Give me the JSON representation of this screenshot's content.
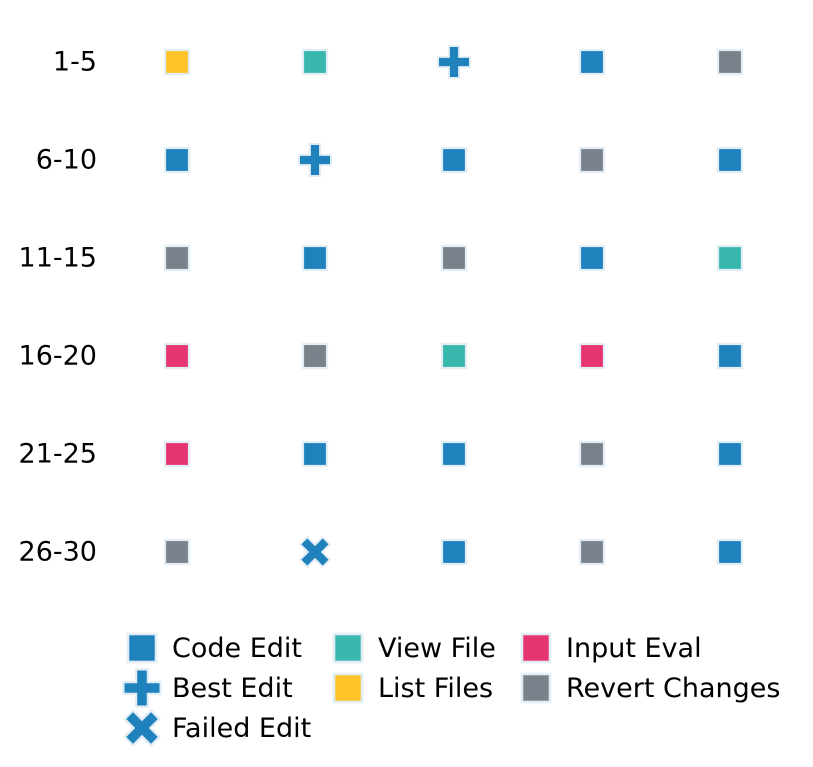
{
  "chart_data": {
    "type": "scatter",
    "title": "",
    "xlabel": "",
    "ylabel": "",
    "grid": false,
    "background": "#ffffff",
    "marker_edge_color": "#e3edf6",
    "text_color": "#000000",
    "legend_position": "bottom",
    "y_tick_labels": [
      "1-5",
      "6-10",
      "11-15",
      "16-20",
      "21-25",
      "26-30"
    ],
    "actions": [
      {
        "label": "Code Edit",
        "marker": "square",
        "color": "#1f82bd"
      },
      {
        "label": "Best Edit",
        "marker": "plus",
        "color": "#1f82bd"
      },
      {
        "label": "Failed Edit",
        "marker": "x",
        "color": "#1f82bd"
      },
      {
        "label": "View File",
        "marker": "square",
        "color": "#39b7ad"
      },
      {
        "label": "List Files",
        "marker": "square",
        "color": "#fdc328"
      },
      {
        "label": "Input Eval",
        "marker": "square",
        "color": "#e73571"
      },
      {
        "label": "Revert Changes",
        "marker": "square",
        "color": "#7a818a"
      }
    ],
    "rows": [
      {
        "label": "1-5",
        "actions": [
          "List Files",
          "View File",
          "Best Edit",
          "Code Edit",
          "Revert Changes"
        ]
      },
      {
        "label": "6-10",
        "actions": [
          "Code Edit",
          "Best Edit",
          "Code Edit",
          "Revert Changes",
          "Code Edit"
        ]
      },
      {
        "label": "11-15",
        "actions": [
          "Revert Changes",
          "Code Edit",
          "Revert Changes",
          "Code Edit",
          "View File"
        ]
      },
      {
        "label": "16-20",
        "actions": [
          "Input Eval",
          "Revert Changes",
          "View File",
          "Input Eval",
          "Code Edit"
        ]
      },
      {
        "label": "21-25",
        "actions": [
          "Input Eval",
          "Code Edit",
          "Code Edit",
          "Revert Changes",
          "Code Edit"
        ]
      },
      {
        "label": "26-30",
        "actions": [
          "Revert Changes",
          "Failed Edit",
          "Code Edit",
          "Revert Changes",
          "Code Edit"
        ]
      }
    ],
    "legend_columns": [
      [
        "Code Edit",
        "Best Edit",
        "Failed Edit"
      ],
      [
        "View File",
        "List Files"
      ],
      [
        "Input Eval",
        "Revert Changes"
      ]
    ]
  }
}
